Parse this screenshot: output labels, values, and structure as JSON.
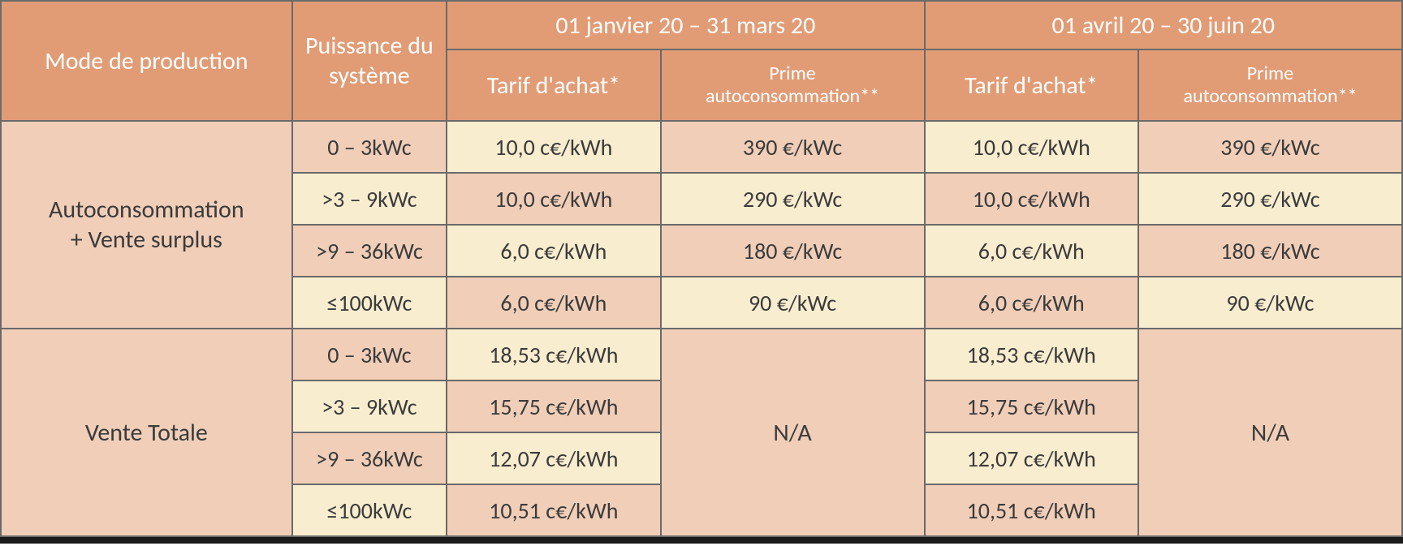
{
  "table": {
    "colors": {
      "header_bg": "#e19c76",
      "header_fg": "#ffffff",
      "cell_peach": "#f0ceb8",
      "cell_cream": "#f8edcf",
      "border": "#6a6a6a",
      "text": "#3b3b3b",
      "shadow": "#1a1a1a"
    },
    "font": {
      "family": "Calibri",
      "base_size_pt": 22
    },
    "header": {
      "mode": "Mode de production",
      "power": "Puissance du système",
      "period1": "01 janvier 20 – 31 mars 20",
      "period2": "01 avril 20 – 30 juin 20",
      "tarif": "Tarif d'achat*",
      "prime_line1": "Prime",
      "prime_line2": "autoconsommation**"
    },
    "groups": [
      {
        "mode_line1": "Autoconsommation",
        "mode_line2": "+ Vente surplus",
        "rows": [
          {
            "power": "0 – 3kWc",
            "p1_tarif": "10,0 c€/kWh",
            "p1_prime": "390 €/kWc",
            "p2_tarif": "10,0 c€/kWh",
            "p2_prime": "390 €/kWc"
          },
          {
            "power": ">3 – 9kWc",
            "p1_tarif": "10,0 c€/kWh",
            "p1_prime": "290 €/kWc",
            "p2_tarif": "10,0 c€/kWh",
            "p2_prime": "290 €/kWc"
          },
          {
            "power": ">9 – 36kWc",
            "p1_tarif": "6,0 c€/kWh",
            "p1_prime": "180 €/kWc",
            "p2_tarif": "6,0 c€/kWh",
            "p2_prime": "180 €/kWc"
          },
          {
            "power": "≤100kWc",
            "p1_tarif": "6,0 c€/kWh",
            "p1_prime": "90 €/kWc",
            "p2_tarif": "6,0 c€/kWh",
            "p2_prime": "90 €/kWc"
          }
        ]
      },
      {
        "mode_line1": "Vente Totale",
        "mode_line2": "",
        "prime_na": "N/A",
        "rows": [
          {
            "power": "0 – 3kWc",
            "p1_tarif": "18,53 c€/kWh",
            "p2_tarif": "18,53 c€/kWh"
          },
          {
            "power": ">3 – 9kWc",
            "p1_tarif": "15,75 c€/kWh",
            "p2_tarif": "15,75 c€/kWh"
          },
          {
            "power": ">9 – 36kWc",
            "p1_tarif": "12,07 c€/kWh",
            "p2_tarif": "12,07 c€/kWh"
          },
          {
            "power": "≤100kWc",
            "p1_tarif": "10,51 c€/kWh",
            "p2_tarif": "10,51 c€/kWh"
          }
        ]
      }
    ]
  }
}
